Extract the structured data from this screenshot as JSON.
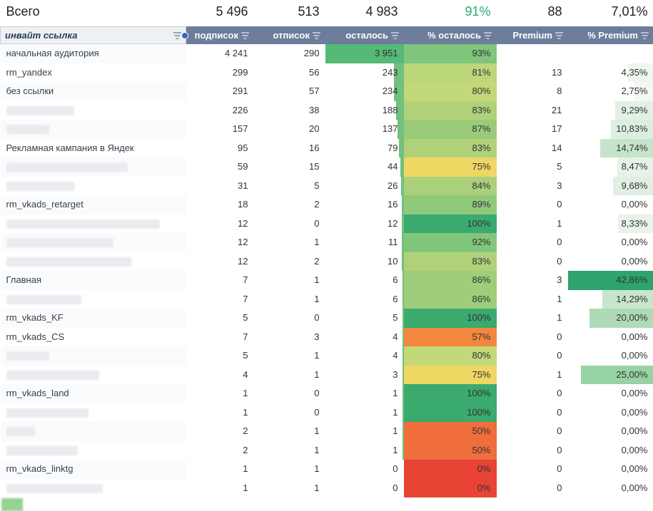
{
  "totals": {
    "label": "Всего",
    "subs": "5 496",
    "unsubs": "513",
    "remain": "4 983",
    "pct_remain": "91%",
    "premium": "88",
    "pct_premium": "7,01%"
  },
  "columns": {
    "link": {
      "label": "инвайт ссылка"
    },
    "subs": {
      "label": "подписок"
    },
    "unsubs": {
      "label": "отписок"
    },
    "remain": {
      "label": "осталось"
    },
    "pct_remain": {
      "label": "% осталось"
    },
    "premium": {
      "label": "Premium"
    },
    "pct_premium": {
      "label": "% Premium"
    }
  },
  "colors": {
    "header_bg": "#6e7d9c",
    "header_first_bg": "#eef1f4",
    "accent_green_text": "#2aa96f",
    "resize_handle": "#3b63c2",
    "redacted": "#e9ebef"
  },
  "heat": {
    "remain_scale": [
      "#2ea36d",
      "#46b173",
      "#72c17b",
      "#98ca7c",
      "#b4d27b",
      "#cfd97a",
      "#e8d873",
      "#f2c25d",
      "#f29f4a",
      "#ee7a3f",
      "#e94f3a"
    ],
    "premium_scale": [
      "#2ea36d",
      "#7ec58e",
      "#aedab1",
      "#cfe8d1",
      "#e6f2e7",
      "#f3f9f4",
      "#ffffff"
    ]
  },
  "rows": [
    {
      "link": "начальная аудитория",
      "subs": "4 241",
      "unsubs": "290",
      "remain": "3 951",
      "pct_remain": "93%",
      "premium": "",
      "pct_premium": "",
      "remain_bg": "#55b977",
      "remain_width": 100,
      "pctrem_bg": "#7fc57b",
      "pctprem_bg": "",
      "pctprem_width": 0
    },
    {
      "link": "rm_yandex",
      "subs": "299",
      "unsubs": "56",
      "remain": "243",
      "pct_remain": "81%",
      "premium": "13",
      "pct_premium": "4,35%",
      "remain_bg": "#72c07d",
      "remain_width": 12,
      "pctrem_bg": "#bcd67a",
      "pctprem_bg": "#edf6ef",
      "pctprem_width": 30
    },
    {
      "link": "без ссылки",
      "subs": "291",
      "unsubs": "57",
      "remain": "234",
      "pct_remain": "80%",
      "premium": "8",
      "pct_premium": "2,75%",
      "remain_bg": "#72c07d",
      "remain_width": 12,
      "pctrem_bg": "#c3d878",
      "pctprem_bg": "#f2f8f3",
      "pctprem_width": 22
    },
    {
      "redacted": 95,
      "subs": "226",
      "unsubs": "38",
      "remain": "188",
      "pct_remain": "83%",
      "premium": "21",
      "pct_premium": "9,29%",
      "remain_bg": "#72c07d",
      "remain_width": 10,
      "pctrem_bg": "#b0d17a",
      "pctprem_bg": "#e3f0e5",
      "pctprem_width": 45
    },
    {
      "redacted": 60,
      "subs": "157",
      "unsubs": "20",
      "remain": "137",
      "pct_remain": "87%",
      "premium": "17",
      "pct_premium": "10,83%",
      "remain_bg": "#72c07d",
      "remain_width": 8,
      "pctrem_bg": "#99cb7b",
      "pctprem_bg": "#dceedf",
      "pctprem_width": 50
    },
    {
      "link": "Рекламная кампания в Яндек",
      "subs": "95",
      "unsubs": "16",
      "remain": "79",
      "pct_remain": "83%",
      "premium": "14",
      "pct_premium": "14,74%",
      "remain_bg": "#71c07d",
      "remain_width": 6,
      "pctrem_bg": "#b0d17a",
      "pctprem_bg": "#c6e4cb",
      "pctprem_width": 62
    },
    {
      "redacted": 170,
      "subs": "59",
      "unsubs": "15",
      "remain": "44",
      "pct_remain": "75%",
      "premium": "5",
      "pct_premium": "8,47%",
      "remain_bg": "#71c07d",
      "remain_width": 4,
      "pctrem_bg": "#eed763",
      "pctprem_bg": "#e7f2e9",
      "pctprem_width": 42
    },
    {
      "redacted": 95,
      "subs": "31",
      "unsubs": "5",
      "remain": "26",
      "pct_remain": "84%",
      "premium": "3",
      "pct_premium": "9,68%",
      "remain_bg": "#71c07d",
      "remain_width": 3,
      "pctrem_bg": "#aad07b",
      "pctprem_bg": "#e1efe3",
      "pctprem_width": 47
    },
    {
      "link": "rm_vkads_retarget",
      "subs": "18",
      "unsubs": "2",
      "remain": "16",
      "pct_remain": "89%",
      "premium": "0",
      "pct_premium": "0,00%",
      "remain_bg": "#71c07d",
      "remain_width": 2,
      "pctrem_bg": "#8fc97c",
      "pctprem_bg": "#ffffff",
      "pctprem_width": 100
    },
    {
      "redacted": 215,
      "subs": "12",
      "unsubs": "0",
      "remain": "12",
      "pct_remain": "100%",
      "premium": "1",
      "pct_premium": "8,33%",
      "remain_bg": "#71c07d",
      "remain_width": 2,
      "pctrem_bg": "#3aaa6e",
      "pctprem_bg": "#e8f3ea",
      "pctprem_width": 41
    },
    {
      "redacted": 150,
      "subs": "12",
      "unsubs": "1",
      "remain": "11",
      "pct_remain": "92%",
      "premium": "0",
      "pct_premium": "0,00%",
      "remain_bg": "#71c07d",
      "remain_width": 2,
      "pctrem_bg": "#82c67b",
      "pctprem_bg": "#ffffff",
      "pctprem_width": 100
    },
    {
      "redacted": 175,
      "subs": "12",
      "unsubs": "2",
      "remain": "10",
      "pct_remain": "83%",
      "premium": "0",
      "pct_premium": "0,00%",
      "remain_bg": "#71c07d",
      "remain_width": 2,
      "pctrem_bg": "#b0d17a",
      "pctprem_bg": "#ffffff",
      "pctprem_width": 100
    },
    {
      "link": "Главная",
      "subs": "7",
      "unsubs": "1",
      "remain": "6",
      "pct_remain": "86%",
      "premium": "3",
      "pct_premium": "42,86%",
      "remain_bg": "#71c07d",
      "remain_width": 1,
      "pctrem_bg": "#9fcd7b",
      "pctprem_bg": "#2ea36d",
      "pctprem_width": 100
    },
    {
      "redacted": 105,
      "subs": "7",
      "unsubs": "1",
      "remain": "6",
      "pct_remain": "86%",
      "premium": "1",
      "pct_premium": "14,29%",
      "remain_bg": "#71c07d",
      "remain_width": 1,
      "pctrem_bg": "#9fcd7b",
      "pctprem_bg": "#c8e5cd",
      "pctprem_width": 60
    },
    {
      "link": "rm_vkads_KF",
      "subs": "5",
      "unsubs": "0",
      "remain": "5",
      "pct_remain": "100%",
      "premium": "1",
      "pct_premium": "20,00%",
      "remain_bg": "#71c07d",
      "remain_width": 1,
      "pctrem_bg": "#3aaa6e",
      "pctprem_bg": "#aedab5",
      "pctprem_width": 75
    },
    {
      "link": "rm_vkads_CS",
      "subs": "7",
      "unsubs": "3",
      "remain": "4",
      "pct_remain": "57%",
      "premium": "0",
      "pct_premium": "0,00%",
      "remain_bg": "#71c07d",
      "remain_width": 1,
      "pctrem_bg": "#f2873f",
      "pctprem_bg": "#ffffff",
      "pctprem_width": 100
    },
    {
      "redacted": 60,
      "subs": "5",
      "unsubs": "1",
      "remain": "4",
      "pct_remain": "80%",
      "premium": "0",
      "pct_premium": "0,00%",
      "remain_bg": "#71c07d",
      "remain_width": 1,
      "pctrem_bg": "#c3d878",
      "pctprem_bg": "#ffffff",
      "pctprem_width": 100
    },
    {
      "redacted": 130,
      "subs": "4",
      "unsubs": "1",
      "remain": "3",
      "pct_remain": "75%",
      "premium": "1",
      "pct_premium": "25,00%",
      "remain_bg": "#71c07d",
      "remain_width": 1,
      "pctrem_bg": "#eed763",
      "pctprem_bg": "#98d3a3",
      "pctprem_width": 85
    },
    {
      "link": "rm_vkads_land",
      "subs": "1",
      "unsubs": "0",
      "remain": "1",
      "pct_remain": "100%",
      "premium": "0",
      "pct_premium": "0,00%",
      "remain_bg": "#71c07d",
      "remain_width": 1,
      "pctrem_bg": "#3aaa6e",
      "pctprem_bg": "#ffffff",
      "pctprem_width": 100
    },
    {
      "redacted": 115,
      "subs": "1",
      "unsubs": "0",
      "remain": "1",
      "pct_remain": "100%",
      "premium": "0",
      "pct_premium": "0,00%",
      "remain_bg": "#71c07d",
      "remain_width": 1,
      "pctrem_bg": "#3aaa6e",
      "pctprem_bg": "#ffffff",
      "pctprem_width": 100
    },
    {
      "redacted": 40,
      "subs": "2",
      "unsubs": "1",
      "remain": "1",
      "pct_remain": "50%",
      "premium": "0",
      "pct_premium": "0,00%",
      "remain_bg": "#71c07d",
      "remain_width": 1,
      "pctrem_bg": "#ef6e3c",
      "pctprem_bg": "#ffffff",
      "pctprem_width": 100
    },
    {
      "redacted": 100,
      "subs": "2",
      "unsubs": "1",
      "remain": "1",
      "pct_remain": "50%",
      "premium": "0",
      "pct_premium": "0,00%",
      "remain_bg": "#71c07d",
      "remain_width": 1,
      "pctrem_bg": "#ef6e3c",
      "pctprem_bg": "#ffffff",
      "pctprem_width": 100
    },
    {
      "link": "rm_vkads_linktg",
      "subs": "1",
      "unsubs": "1",
      "remain": "0",
      "pct_remain": "0%",
      "premium": "0",
      "pct_premium": "0,00%",
      "remain_bg": "",
      "remain_width": 0,
      "pctrem_bg": "#e84335",
      "pctprem_bg": "#ffffff",
      "pctprem_width": 100
    },
    {
      "redacted": 135,
      "subs": "1",
      "unsubs": "1",
      "remain": "0",
      "pct_remain": "0%",
      "premium": "0",
      "pct_premium": "0,00%",
      "remain_bg": "",
      "remain_width": 0,
      "pctrem_bg": "#e84335",
      "pctprem_bg": "#ffffff",
      "pctprem_width": 100
    }
  ]
}
